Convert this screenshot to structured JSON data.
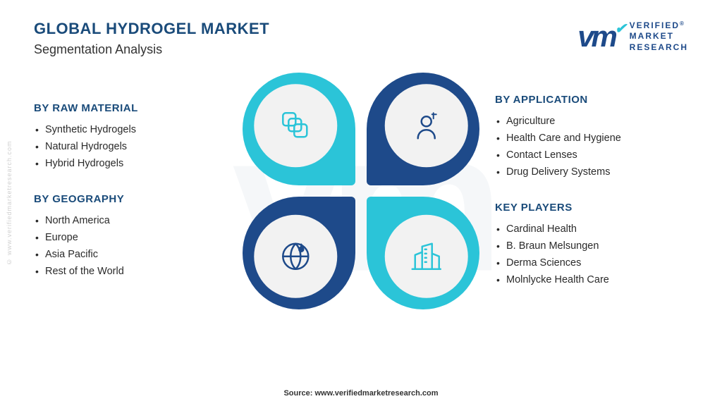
{
  "colors": {
    "title": "#1a4b7a",
    "subtitle": "#333333",
    "section_heading": "#1a4b7a",
    "list_text": "#2a2a2a",
    "teal": "#2bc4d8",
    "navy": "#1e4a8a",
    "icon_teal": "#2bc4d8",
    "icon_navy": "#1e4a8a",
    "logo": "#1e4a8a",
    "logo_accent": "#2bc4d8",
    "source": "#333333"
  },
  "header": {
    "title": "GLOBAL HYDROGEL MARKET",
    "subtitle": "Segmentation Analysis"
  },
  "logo": {
    "mark": "vm",
    "line1": "VERIFIED",
    "line2": "MARKET",
    "line3": "RESEARCH",
    "reg": "®"
  },
  "watermark_side": "© www.verifiedmarketresearch.com",
  "segments": {
    "raw_material": {
      "heading": "BY RAW MATERIAL",
      "items": [
        "Synthetic Hydrogels",
        "Natural Hydrogels",
        "Hybrid Hydrogels"
      ]
    },
    "geography": {
      "heading": "BY GEOGRAPHY",
      "items": [
        "North America",
        "Europe",
        "Asia Pacific",
        "Rest of the World"
      ]
    },
    "application": {
      "heading": "BY APPLICATION",
      "items": [
        "Agriculture",
        "Health Care and Hygiene",
        "Contact Lenses",
        "Drug Delivery Systems"
      ]
    },
    "key_players": {
      "heading": "KEY PLAYERS",
      "items": [
        "Cardinal Health",
        "B. Braun Melsungen",
        "Derma Sciences",
        "Molnlycke Health Care"
      ]
    }
  },
  "center": {
    "petals": [
      {
        "pos": "tl",
        "ring_color": "#2bc4d8",
        "icon": "layers",
        "icon_color": "#2bc4d8"
      },
      {
        "pos": "tr",
        "ring_color": "#1e4a8a",
        "icon": "person",
        "icon_color": "#1e4a8a"
      },
      {
        "pos": "bl",
        "ring_color": "#1e4a8a",
        "icon": "globe",
        "icon_color": "#1e4a8a"
      },
      {
        "pos": "br",
        "ring_color": "#2bc4d8",
        "icon": "building",
        "icon_color": "#2bc4d8"
      }
    ]
  },
  "source": "Source: www.verifiedmarketresearch.com"
}
